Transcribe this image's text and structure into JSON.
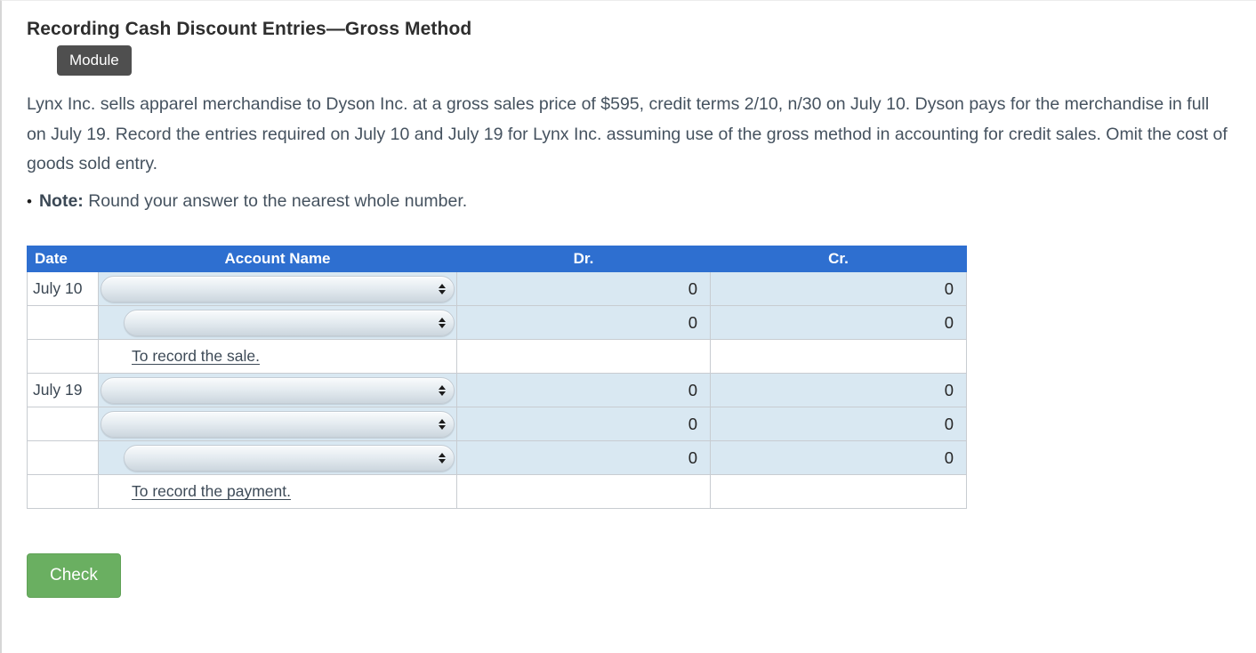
{
  "header": {
    "title": "Recording Cash Discount Entries—Gross Method",
    "module_badge": "Module"
  },
  "problem": {
    "text": "Lynx Inc. sells apparel merchandise to Dyson Inc. at a gross sales price of $595, credit terms 2/10, n/30 on July 10. Dyson pays for the merchandise in full on July 19. Record the entries required on July 10 and July 19 for Lynx Inc. assuming use of the gross method in accounting for credit sales. Omit the cost of goods sold entry.",
    "note_bullet": "•",
    "note_label": "Note:",
    "note_text": "Round your answer to the nearest whole number."
  },
  "journal_table": {
    "headers": {
      "date": "Date",
      "account": "Account Name",
      "dr": "Dr.",
      "cr": "Cr."
    },
    "rows": [
      {
        "date": "July 10",
        "dr": "0",
        "cr": "0"
      },
      {
        "date": "",
        "dr": "0",
        "cr": "0"
      },
      {
        "memo": "To record the sale."
      },
      {
        "date": "July 19",
        "dr": "0",
        "cr": "0"
      },
      {
        "date": "",
        "dr": "0",
        "cr": "0"
      },
      {
        "date": "",
        "dr": "0",
        "cr": "0"
      },
      {
        "memo": "To record the payment."
      }
    ]
  },
  "actions": {
    "check_button": "Check"
  },
  "colors": {
    "table_header_bg": "#2e6fd0",
    "input_cell_bg": "#d9e8f2",
    "check_button_bg": "#6aaf61",
    "module_badge_bg": "#4f4f4f"
  }
}
